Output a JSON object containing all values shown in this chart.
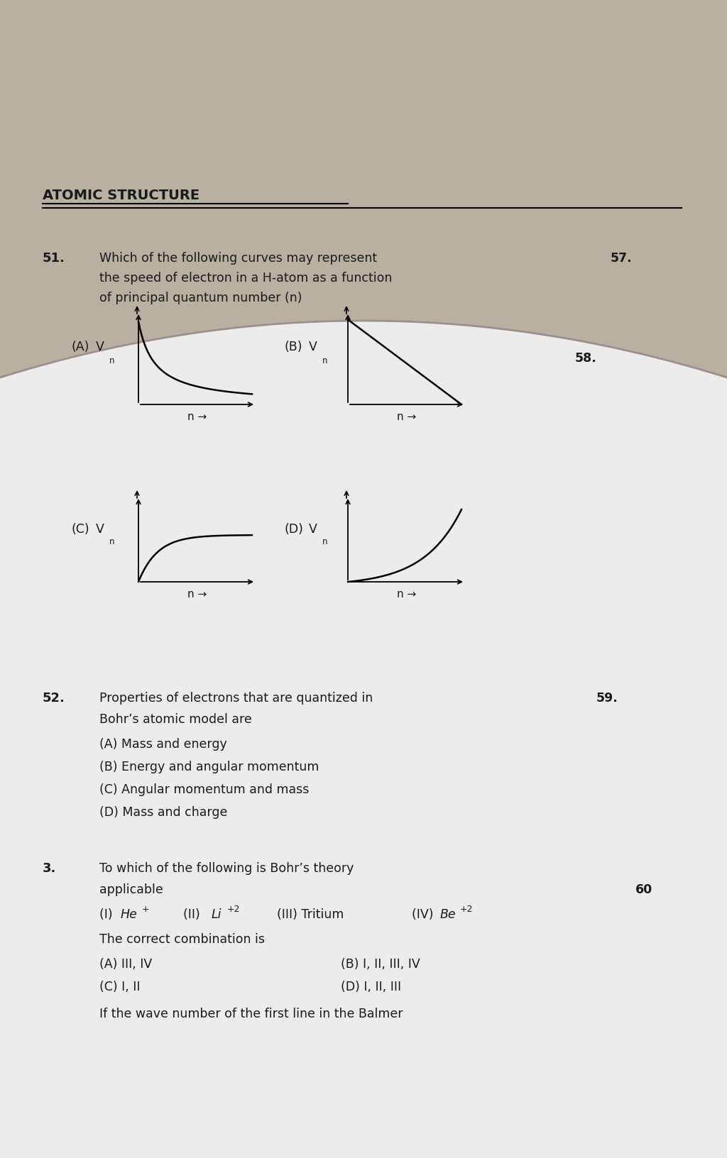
{
  "bg_color": "#c8c4bc",
  "page_bg": "#f0eeea",
  "title": "ATOMIC STRUCTURE",
  "q51_num": "51.",
  "q57_num": "57.",
  "q58_num": "58.",
  "q52_num": "52.",
  "q59_num": "59.",
  "q3_num": "3.",
  "q60_num": "60",
  "q52_opts": [
    "(A) Mass and energy",
    "(B) Energy and angular momentum",
    "(C) Angular momentum and mass",
    "(D) Mass and charge"
  ],
  "q3_opts_left": [
    "(A) III, IV",
    "(C) I, II"
  ],
  "q3_opts_right": [
    "(B) I, II, III, IV",
    "(D) I, II, III"
  ],
  "footer": "If the wave number of the first line in the Balmer"
}
